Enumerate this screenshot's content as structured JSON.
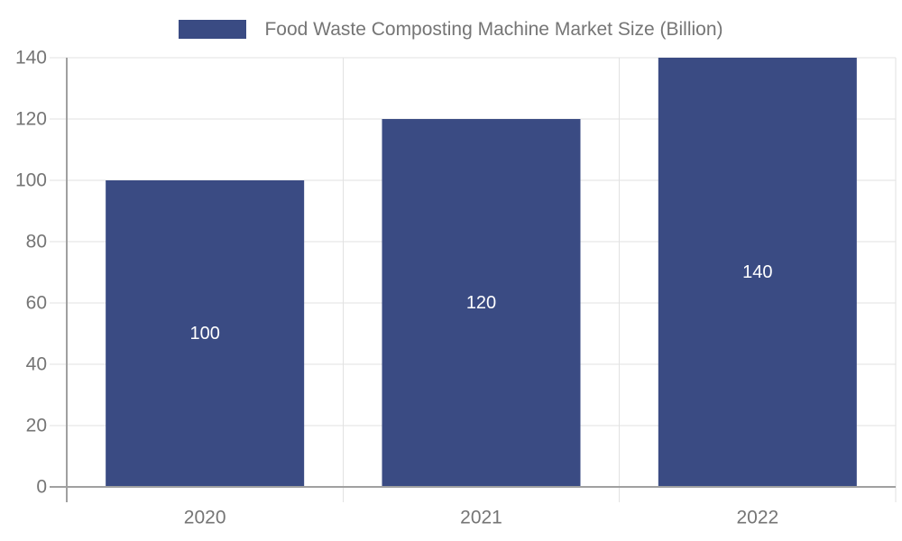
{
  "legend": {
    "label": "Food Waste Composting Machine Market Size (Billion)"
  },
  "colors": {
    "bar": "#3A4B83",
    "axis": "#A0A0A0",
    "grid": "#E2E2E2",
    "text": "#757575",
    "value_label": "#FFFFFF",
    "background": "#FFFFFF"
  },
  "chart_data": {
    "type": "bar",
    "title": "Food Waste Composting Machine Market Size (Billion)",
    "categories": [
      "2020",
      "2021",
      "2022"
    ],
    "values": [
      100,
      120,
      140
    ],
    "bar_labels": [
      "100",
      "120",
      "140"
    ],
    "series": [
      {
        "name": "Food Waste Composting Machine Market Size (Billion)",
        "values": [
          100,
          120,
          140
        ]
      }
    ],
    "xlabel": "",
    "ylabel": "",
    "ylim": [
      0,
      140
    ],
    "yticks": [
      0,
      20,
      40,
      60,
      80,
      100,
      120,
      140
    ],
    "grid": true,
    "legend_position": "top-center"
  }
}
